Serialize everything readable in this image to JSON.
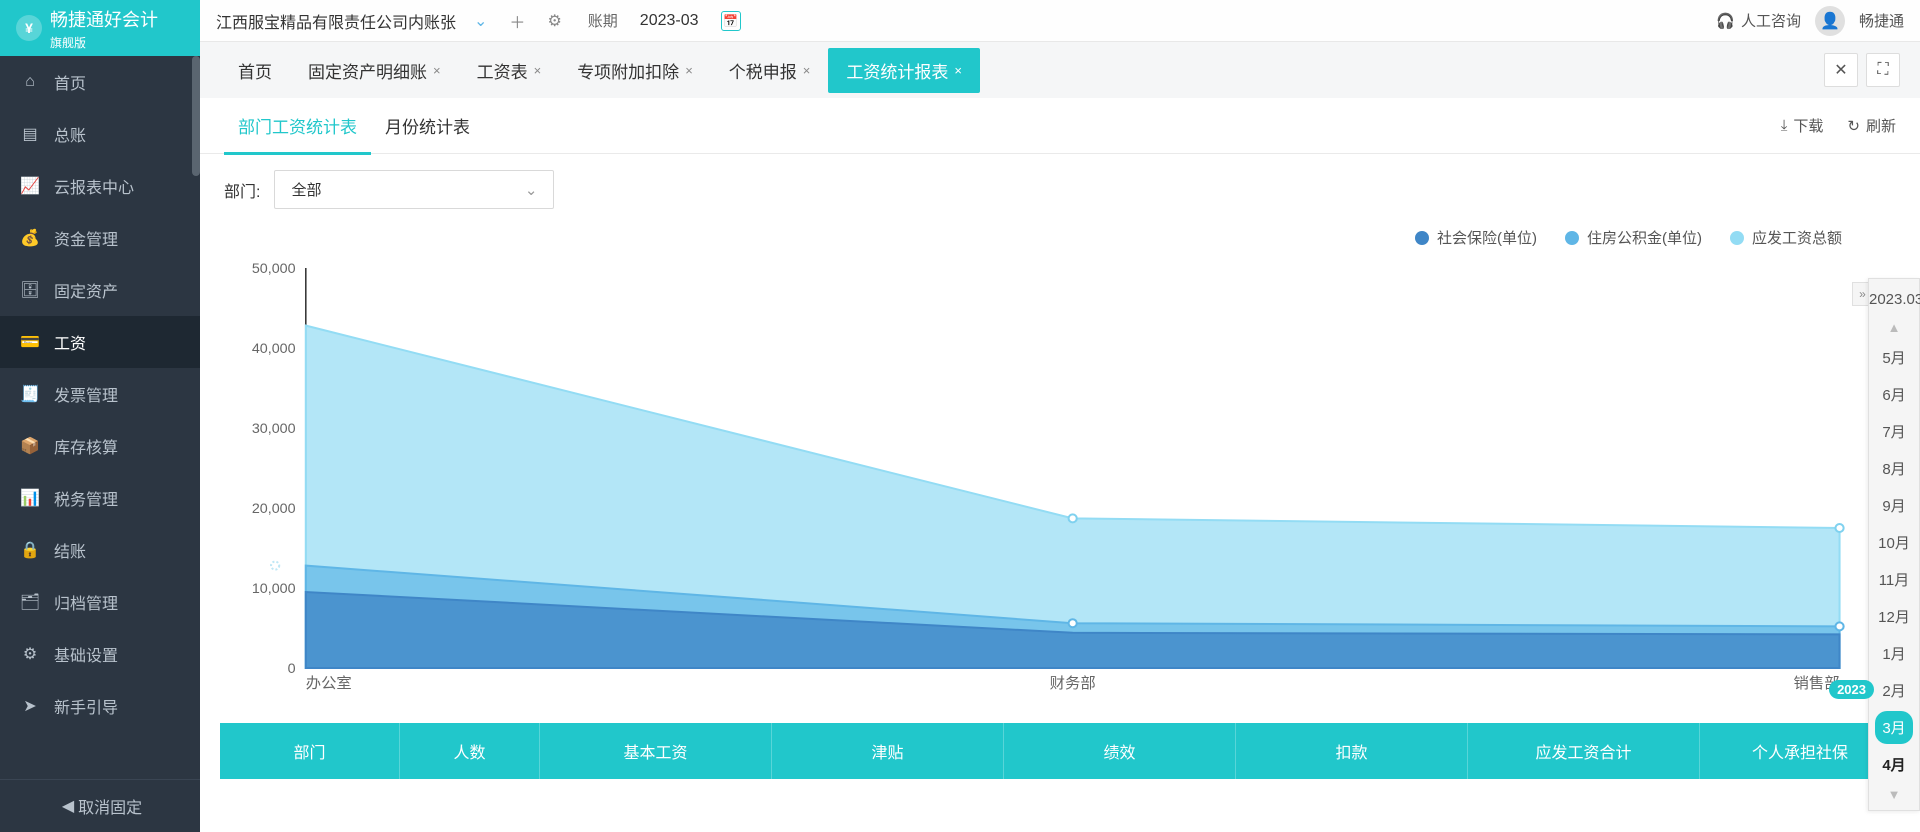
{
  "brand": {
    "name": "畅捷通好会计",
    "edition": "旗舰版"
  },
  "sidebar": {
    "items": [
      {
        "label": "首页",
        "icon": "home"
      },
      {
        "label": "总账",
        "icon": "ledger"
      },
      {
        "label": "云报表中心",
        "icon": "report"
      },
      {
        "label": "资金管理",
        "icon": "fund"
      },
      {
        "label": "固定资产",
        "icon": "asset"
      },
      {
        "label": "工资",
        "icon": "salary",
        "active": true
      },
      {
        "label": "发票管理",
        "icon": "invoice"
      },
      {
        "label": "库存核算",
        "icon": "stock"
      },
      {
        "label": "税务管理",
        "icon": "tax"
      },
      {
        "label": "结账",
        "icon": "close"
      },
      {
        "label": "归档管理",
        "icon": "archive"
      },
      {
        "label": "基础设置",
        "icon": "setting"
      },
      {
        "label": "新手引导",
        "icon": "guide"
      }
    ],
    "footer": "取消固定"
  },
  "topbar": {
    "company": "江西服宝精品有限责任公司内账张",
    "period_label": "账期",
    "period_value": "2023-03",
    "help_label": "人工咨询",
    "user_name": "畅捷通"
  },
  "tabs": [
    {
      "label": "首页",
      "closable": false
    },
    {
      "label": "固定资产明细账",
      "closable": true
    },
    {
      "label": "工资表",
      "closable": true
    },
    {
      "label": "专项附加扣除",
      "closable": true
    },
    {
      "label": "个税申报",
      "closable": true
    },
    {
      "label": "工资统计报表",
      "closable": true,
      "active": true
    }
  ],
  "subtabs": {
    "items": [
      "部门工资统计表",
      "月份统计表"
    ],
    "active_index": 0,
    "download_label": "下载",
    "refresh_label": "刷新"
  },
  "filter": {
    "dept_label": "部门:",
    "dept_value": "全部"
  },
  "chart": {
    "type": "area",
    "categories": [
      "办公室",
      "财务部",
      "销售部"
    ],
    "y_ticks": [
      0,
      10000,
      20000,
      30000,
      40000,
      50000
    ],
    "y_labels": [
      "0",
      "10,000",
      "20,000",
      "30,000",
      "40,000",
      "50,000"
    ],
    "series": [
      {
        "name": "应发工资总额",
        "color": "#93dcf4",
        "fill": "#93dcf4",
        "fill_opacity": 0.7,
        "values": [
          42800,
          18700,
          17500
        ],
        "legend_swatch": "#93dcf4"
      },
      {
        "name": "住房公积金(单位)",
        "color": "#5fb6e6",
        "fill": "#5fb6e6",
        "fill_opacity": 0.7,
        "values": [
          12800,
          5600,
          5200
        ],
        "legend_swatch": "#5fb6e6"
      },
      {
        "name": "社会保险(单位)",
        "color": "#3f86c7",
        "fill": "#3f86c7",
        "fill_opacity": 0.78,
        "values": [
          9500,
          4400,
          4200
        ],
        "legend_swatch": "#3f86c7"
      }
    ],
    "background_color": "#ffffff",
    "axis_color": "#666666",
    "tick_font_size": 14,
    "label_font_size": 15,
    "y_max": 50000,
    "y_min": 0,
    "marker_outline": "#bfe7f5"
  },
  "table": {
    "columns": [
      "部门",
      "人数",
      "基本工资",
      "津贴",
      "绩效",
      "扣款",
      "应发工资合计",
      "个人承担社保"
    ]
  },
  "month_panel": {
    "header": "2023.03",
    "months": [
      "5月",
      "6月",
      "7月",
      "8月",
      "9月",
      "10月",
      "11月",
      "12月",
      "1月",
      "2月",
      "3月",
      "4月"
    ],
    "current_index": 10,
    "bold_index": 11,
    "year_badge": "2023"
  }
}
